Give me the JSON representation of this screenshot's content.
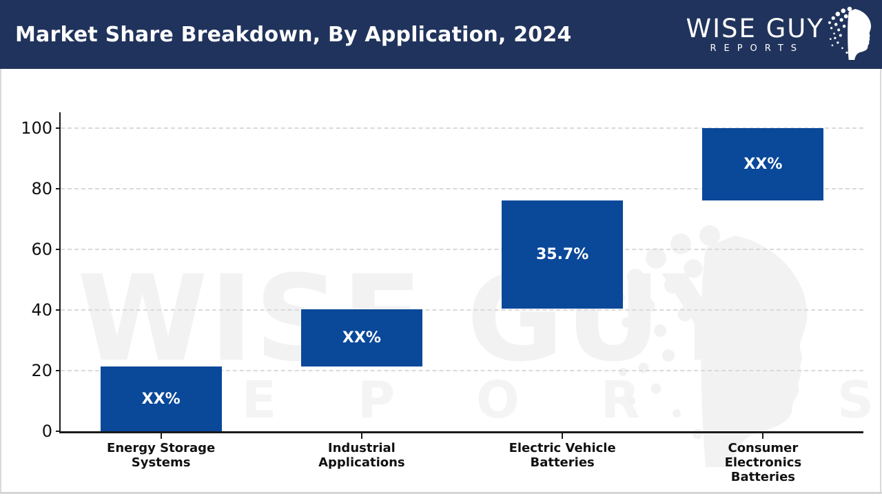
{
  "header": {
    "title": "Market Share Breakdown, By Application, 2024",
    "brand_line1": "WISE GUY",
    "brand_line2": "REPORTS",
    "bg_color": "#20335c"
  },
  "watermark": {
    "line1": "WISE GUY",
    "line2": "R E P O R T S"
  },
  "chart_data": {
    "type": "bar",
    "subtype": "waterfall",
    "title": "Market Share Breakdown, By Application, 2024",
    "xlabel": "",
    "ylabel": "",
    "categories": [
      [
        "Energy Storage",
        "Systems"
      ],
      [
        "Industrial",
        "Applications"
      ],
      [
        "Electric Vehicle",
        "Batteries"
      ],
      [
        "Consumer",
        "Electronics",
        "Batteries"
      ]
    ],
    "bars": [
      {
        "label": "XX%",
        "start": 0,
        "end": 21.3
      },
      {
        "label": "XX%",
        "start": 21.3,
        "end": 40.3
      },
      {
        "label": "35.7%",
        "start": 40.4,
        "end": 76.1
      },
      {
        "label": "XX%",
        "start": 76.1,
        "end": 99.9
      }
    ],
    "yticks": [
      0,
      20,
      40,
      60,
      80,
      100
    ],
    "ylim": [
      0,
      105
    ],
    "bar_color": "#0a4899",
    "grid": "horizontal-dashed",
    "gridline_color": "#d9d9d9",
    "legend": "none"
  }
}
